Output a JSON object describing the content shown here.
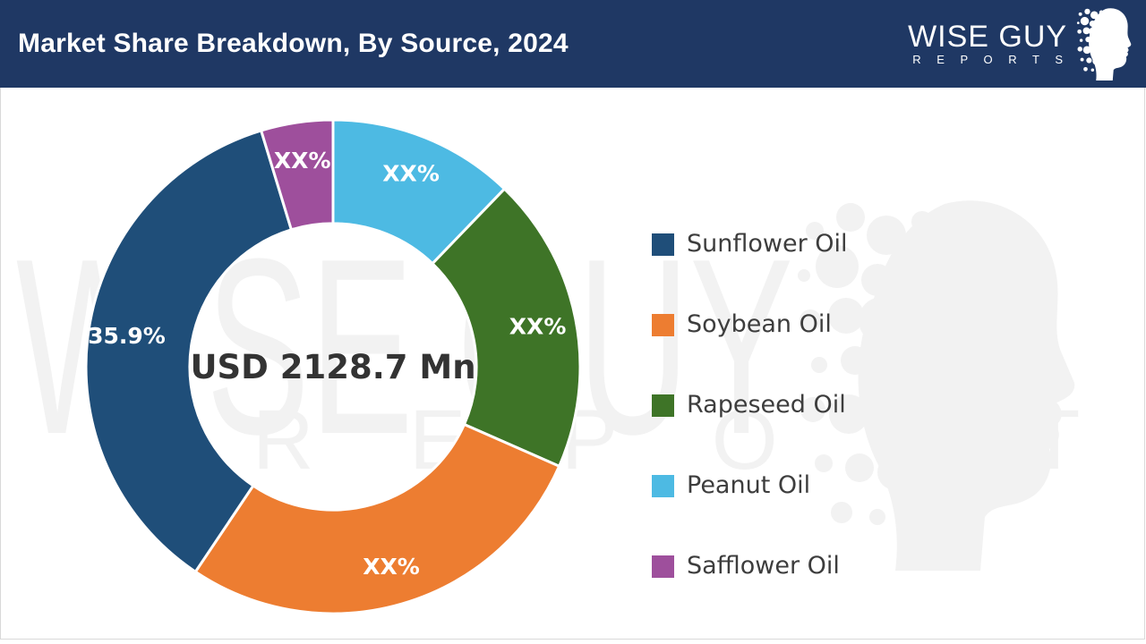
{
  "header": {
    "title": "Market Share Breakdown, By Source, 2024",
    "bg_color": "#1F3864",
    "logo": {
      "line1": "WISE GUY",
      "line2": "R E P O R T S"
    }
  },
  "chart_data": {
    "type": "pie",
    "subtype": "donut",
    "title": "Market Share Breakdown, By Source, 2024",
    "center_label": "USD 2128.7 Mn",
    "donut_hole_ratio": 0.58,
    "legend_position": "right",
    "series": [
      {
        "name": "Sunflower Oil",
        "label": "35.9%",
        "value": 35.9,
        "color": "#1F4E79"
      },
      {
        "name": "Soybean Oil",
        "label": "XX%",
        "value": 27.8,
        "color": "#ED7D31"
      },
      {
        "name": "Rapeseed Oil",
        "label": "XX%",
        "value": 19.4,
        "color": "#3E7427"
      },
      {
        "name": "Peanut Oil",
        "label": "XX%",
        "value": 12.2,
        "color": "#4DBAE3"
      },
      {
        "name": "Safflower Oil",
        "label": "XX%",
        "value": 4.7,
        "color": "#9E4F9C"
      }
    ],
    "draw_clockwise_from_top": [
      "Peanut Oil",
      "Rapeseed Oil",
      "Soybean Oil",
      "Sunflower Oil",
      "Safflower Oil"
    ]
  },
  "watermark": {
    "line1": "WISE GUY",
    "line2": "R E P O R T S"
  }
}
